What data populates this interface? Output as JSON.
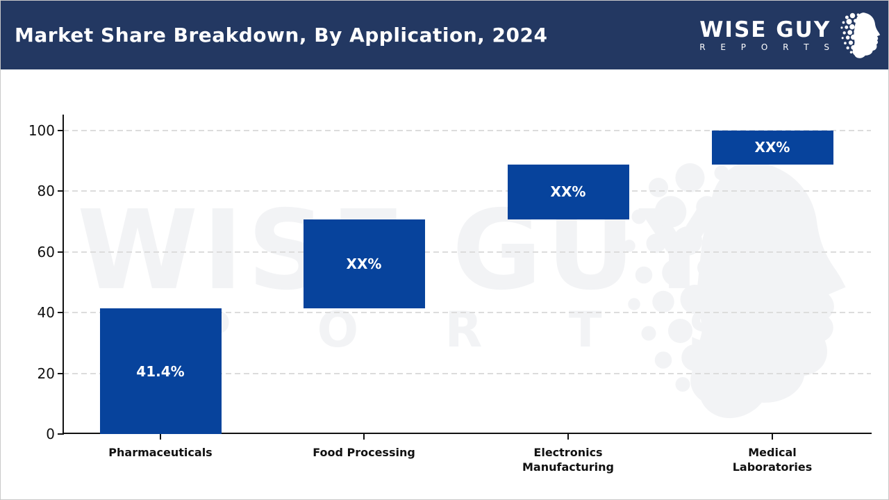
{
  "page": {
    "background": "#ffffff",
    "border_color": "#c9c9c9"
  },
  "header": {
    "background": "#233862",
    "title": "Market Share Breakdown, By Application, 2024",
    "logo": {
      "line1": "WISE GUY",
      "line2": "R E P O R T S",
      "icon": "dotted-head-profile",
      "color": "#ffffff"
    }
  },
  "watermark": {
    "line1": "WISE GUY.",
    "line2": "P O R T S .",
    "icon": "dotted-head-profile",
    "color": "#f2f3f5"
  },
  "chart_data": {
    "type": "bar",
    "subtype": "waterfall",
    "title": "Market Share Breakdown, By Application, 2024",
    "xlabel": "",
    "ylabel": "",
    "ylim": [
      0,
      100
    ],
    "yticks": [
      0,
      20,
      40,
      60,
      80,
      100
    ],
    "grid": "horizontal-dashed",
    "legend": "none",
    "bar_color": "#07439c",
    "value_label_color": "#ffffff",
    "axis_color": "#111111",
    "gridline_color": "#dcdcdc",
    "categories": [
      "Pharmaceuticals",
      "Food Processing",
      "Electronics Manufacturing",
      "Medical Laboratories"
    ],
    "category_label_lines": [
      [
        "Pharmaceuticals"
      ],
      [
        "Food Processing"
      ],
      [
        "Electronics",
        "Manufacturing"
      ],
      [
        "Medical",
        "Laboratories"
      ]
    ],
    "segments": [
      {
        "category": "Pharmaceuticals",
        "start": 0,
        "end": 41.4,
        "label": "41.4%"
      },
      {
        "category": "Food Processing",
        "start": 41.4,
        "end": 70.7,
        "label": "XX%"
      },
      {
        "category": "Electronics Manufacturing",
        "start": 70.7,
        "end": 88.9,
        "label": "XX%"
      },
      {
        "category": "Medical Laboratories",
        "start": 88.9,
        "end": 100,
        "label": "XX%"
      }
    ]
  }
}
